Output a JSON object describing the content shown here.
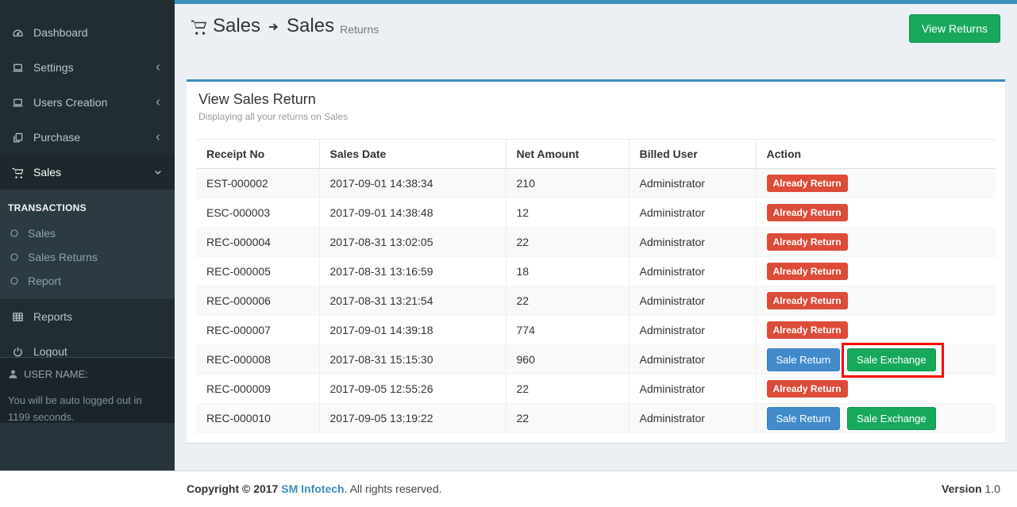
{
  "sidebar": {
    "menu": [
      {
        "label": "Dashboard",
        "icon": "dashboard-icon",
        "chevron": null,
        "active": false
      },
      {
        "label": "Settings",
        "icon": "laptop-icon",
        "chevron": "left",
        "active": false
      },
      {
        "label": "Users Creation",
        "icon": "laptop-icon",
        "chevron": "left",
        "active": false
      },
      {
        "label": "Purchase",
        "icon": "copy-icon",
        "chevron": "left",
        "active": false
      },
      {
        "label": "Sales",
        "icon": "cart-icon",
        "chevron": "down",
        "active": true
      }
    ],
    "submenu": {
      "header": "TRANSACTIONS",
      "items": [
        {
          "label": "Sales"
        },
        {
          "label": "Sales Returns"
        },
        {
          "label": "Report"
        }
      ]
    },
    "menu_after": [
      {
        "label": "Reports",
        "icon": "table-icon"
      },
      {
        "label": "Logout",
        "icon": "power-icon"
      }
    ],
    "user_panel": {
      "label": "USER NAME:",
      "auto_logout_text": "You will be auto logged out in 1199 seconds."
    }
  },
  "header": {
    "breadcrumb": {
      "section": "Sales",
      "page": "Sales",
      "page_small": "Returns"
    },
    "view_returns_button": "View Returns"
  },
  "panel": {
    "title": "View Sales Return",
    "subtitle": "Displaying all your returns on Sales"
  },
  "table": {
    "columns": [
      "Receipt No",
      "Sales Date",
      "Net Amount",
      "Billed User",
      "Action"
    ],
    "action_labels": {
      "already_return": "Already Return",
      "sale_return": "Sale Return",
      "sale_exchange": "Sale Exchange"
    },
    "rows": [
      {
        "receipt_no": "EST-000002",
        "sales_date": "2017-09-01 14:38:34",
        "net_amount": "210",
        "billed_user": "Administrator",
        "actions": [
          "already_return"
        ],
        "highlight_sale_exchange": false
      },
      {
        "receipt_no": "ESC-000003",
        "sales_date": "2017-09-01 14:38:48",
        "net_amount": "12",
        "billed_user": "Administrator",
        "actions": [
          "already_return"
        ],
        "highlight_sale_exchange": false
      },
      {
        "receipt_no": "REC-000004",
        "sales_date": "2017-08-31 13:02:05",
        "net_amount": "22",
        "billed_user": "Administrator",
        "actions": [
          "already_return"
        ],
        "highlight_sale_exchange": false
      },
      {
        "receipt_no": "REC-000005",
        "sales_date": "2017-08-31 13:16:59",
        "net_amount": "18",
        "billed_user": "Administrator",
        "actions": [
          "already_return"
        ],
        "highlight_sale_exchange": false
      },
      {
        "receipt_no": "REC-000006",
        "sales_date": "2017-08-31 13:21:54",
        "net_amount": "22",
        "billed_user": "Administrator",
        "actions": [
          "already_return"
        ],
        "highlight_sale_exchange": false
      },
      {
        "receipt_no": "REC-000007",
        "sales_date": "2017-09-01 14:39:18",
        "net_amount": "774",
        "billed_user": "Administrator",
        "actions": [
          "already_return"
        ],
        "highlight_sale_exchange": false
      },
      {
        "receipt_no": "REC-000008",
        "sales_date": "2017-08-31 15:15:30",
        "net_amount": "960",
        "billed_user": "Administrator",
        "actions": [
          "sale_return",
          "sale_exchange"
        ],
        "highlight_sale_exchange": true
      },
      {
        "receipt_no": "REC-000009",
        "sales_date": "2017-09-05 12:55:26",
        "net_amount": "22",
        "billed_user": "Administrator",
        "actions": [
          "already_return"
        ],
        "highlight_sale_exchange": false
      },
      {
        "receipt_no": "REC-000010",
        "sales_date": "2017-09-05 13:19:22",
        "net_amount": "22",
        "billed_user": "Administrator",
        "actions": [
          "sale_return",
          "sale_exchange"
        ],
        "highlight_sale_exchange": false
      }
    ]
  },
  "footer": {
    "copyright_prefix": "Copyright © 2017 ",
    "company": "SM Infotech",
    "copyright_suffix": ". All rights reserved.",
    "version_label": "Version",
    "version_value": "1.0"
  },
  "colors": {
    "accent_blue": "#3c8dbc",
    "button_green": "#18a85c",
    "button_blue": "#428bca",
    "badge_red": "#dd4b39",
    "annotation_red": "#fe0000",
    "sidebar_bg": "#222d32",
    "content_bg": "#ecf0f5"
  }
}
